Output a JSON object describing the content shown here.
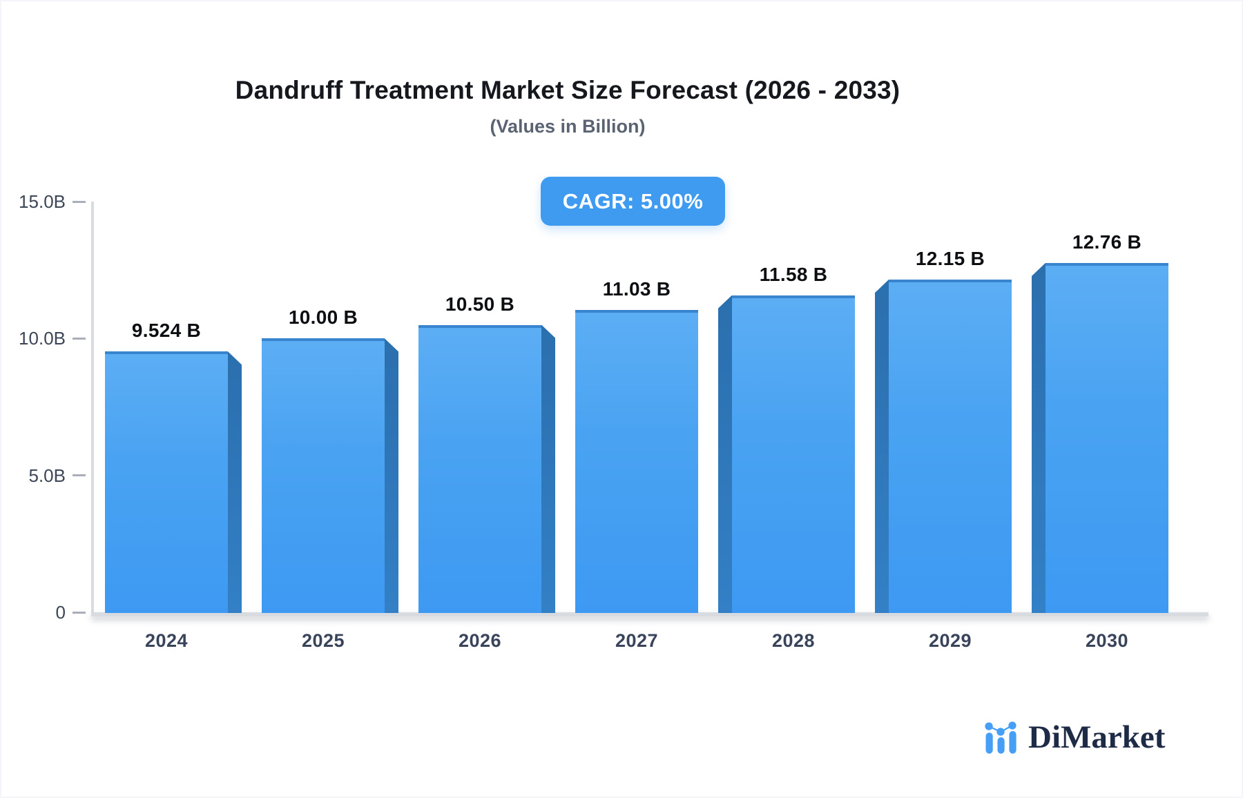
{
  "title": "Dandruff Treatment Market Size Forecast (2026 - 2033)",
  "subtitle": "(Values in Billion)",
  "badge": {
    "label": "CAGR: 5.00%"
  },
  "chart_data": {
    "type": "bar",
    "title": "Dandruff Treatment Market Size Forecast (2026 - 2033)",
    "subtitle": "(Values in Billion)",
    "categories": [
      "2024",
      "2025",
      "2026",
      "2027",
      "2028",
      "2029",
      "2030"
    ],
    "values": [
      9.524,
      10.0,
      10.5,
      11.03,
      11.58,
      12.15,
      12.76
    ],
    "bar_labels": [
      "9.524 B",
      "10.00 B",
      "10.50 B",
      "11.03 B",
      "11.58 B",
      "12.15 B",
      "12.76 B"
    ],
    "xlabel": "",
    "ylabel": "",
    "ylim": [
      0,
      15
    ],
    "yticks": [
      {
        "value": 0,
        "label": "0"
      },
      {
        "value": 5,
        "label": "5.0B"
      },
      {
        "value": 10,
        "label": "10.0B"
      },
      {
        "value": 15,
        "label": "15.0B"
      }
    ],
    "grid": false,
    "legend": false,
    "style": "3d-bevel-bars"
  },
  "colors": {
    "badge_bg": "#3e9bf0",
    "bar_face": "#46a0f2",
    "bar_side": "#2e76b8",
    "axis": "#d8dbe0",
    "logo_navy": "#1d2b47",
    "logo_blue": "#469ef5"
  },
  "logo": {
    "text": "DiMarket",
    "icon": "mini-bar-chart-icon"
  }
}
